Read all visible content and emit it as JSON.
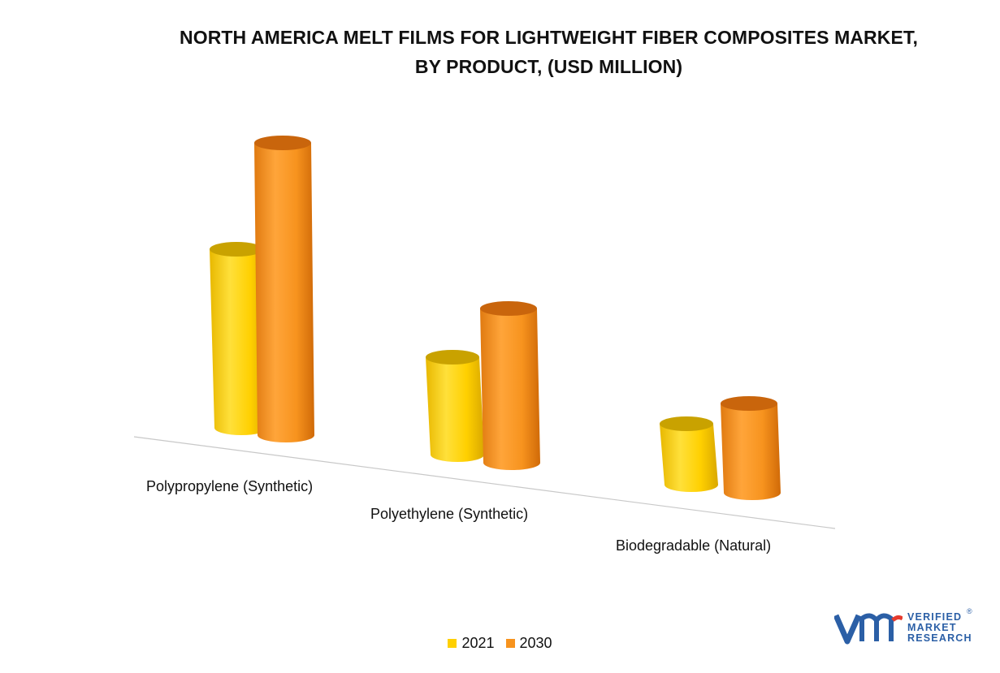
{
  "chart_data": {
    "type": "bar",
    "title_lines": [
      "NORTH AMERICA MELT FILMS FOR LIGHTWEIGHT FIBER COMPOSITES MARKET,",
      "BY PRODUCT, (USD MILLION)"
    ],
    "categories": [
      "Polypropylene (Synthetic)",
      "Polyethylene (Synthetic)",
      "Biodegradable (Natural)"
    ],
    "series": [
      {
        "name": "2021",
        "values": [
          220,
          120,
          75
        ],
        "color": "#FFD000"
      },
      {
        "name": "2030",
        "values": [
          360,
          190,
          110
        ],
        "color": "#F7931E"
      }
    ],
    "ylim": [
      0,
      380
    ],
    "grid": false,
    "style": "3d-cylinder",
    "legend_position": "bottom"
  },
  "logo": {
    "name": "vmr-logo",
    "lines": [
      "VERIFIED",
      "MARKET",
      "RESEARCH"
    ],
    "registered": "®"
  }
}
